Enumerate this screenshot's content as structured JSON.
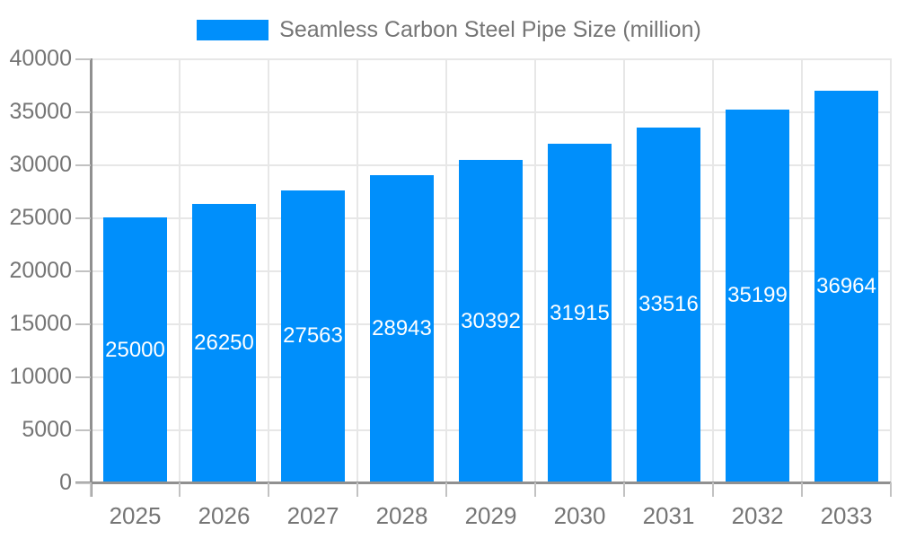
{
  "chart_data": {
    "type": "bar",
    "title": "Seamless Carbon Steel Pipe Size (million)",
    "categories": [
      "2025",
      "2026",
      "2027",
      "2028",
      "2029",
      "2030",
      "2031",
      "2032",
      "2033"
    ],
    "series": [
      {
        "name": "Seamless Carbon Steel Pipe Size (million)",
        "values": [
          25000,
          26250,
          27563,
          28943,
          30392,
          31915,
          33516,
          35199,
          36964
        ]
      }
    ],
    "value_labels_shown": true,
    "xlabel": "",
    "ylabel": "",
    "ylim": [
      0,
      40000
    ],
    "ytick_step": 5000,
    "ytick_labels": [
      "0",
      "5000",
      "10000",
      "15000",
      "20000",
      "25000",
      "30000",
      "35000",
      "40000"
    ],
    "grid": "both",
    "legend_position": "top"
  },
  "legend": {
    "label": "Seamless Carbon Steel Pipe Size (million)"
  },
  "colors": {
    "background": "#FFFFFF",
    "bar": "#008FFB",
    "axis_line": "#909090",
    "grid_line": "#E7E7E7",
    "tick_line": "#C2C2C2",
    "axis_text": "#757575",
    "value_text": "#FFFFFF"
  }
}
